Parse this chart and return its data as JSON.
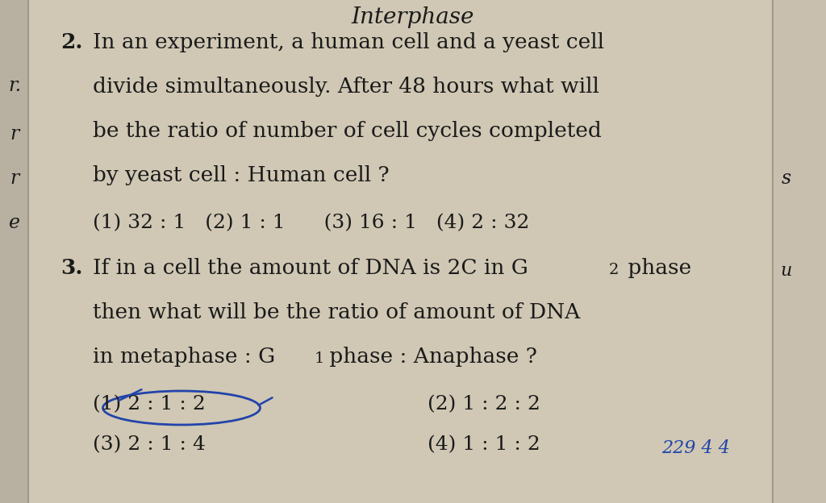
{
  "background_color": "#c8bfb0",
  "page_bg": "#d4cbb8",
  "text_color": "#1a1a1a",
  "header_text": "Interphase",
  "q2_number": "2.",
  "q2_text_line1": "In an experiment, a human cell and a yeast cell",
  "q2_text_line2": "divide simultaneously. After 48 hours what will",
  "q2_text_line3": "be the ratio of number of cell cycles completed",
  "q2_text_line4": "by yeast cell : Human cell ?",
  "q2_options": "(1) 32 : 1   (2) 1 : 1      (3) 16 : 1   (4) 2 : 32",
  "q3_number": "3.",
  "q3_text_line1": "If in a cell the amount of DNA is 2C in G",
  "q3_text_line1_sub": "2",
  "q3_text_line1_end": " phase",
  "q3_text_line2": "then what will be the ratio of amount of DNA",
  "q3_text_line3": "in metaphase : G",
  "q3_text_line3_sub": "1",
  "q3_text_line3_end": " phase : Anaphase ?",
  "q3_opt1": "(1) 2 : 1 : 2",
  "q3_opt2": "(2) 1 : 2 : 2",
  "q3_opt3": "(3) 2 : 1 : 4",
  "q3_opt4": "(4) 1 : 1 : 2",
  "q3_scribble": "229 4 4",
  "left_letters": [
    "r.",
    "r",
    "r",
    "e"
  ],
  "right_letter": "s",
  "font_size_main": 19,
  "font_size_options": 18
}
